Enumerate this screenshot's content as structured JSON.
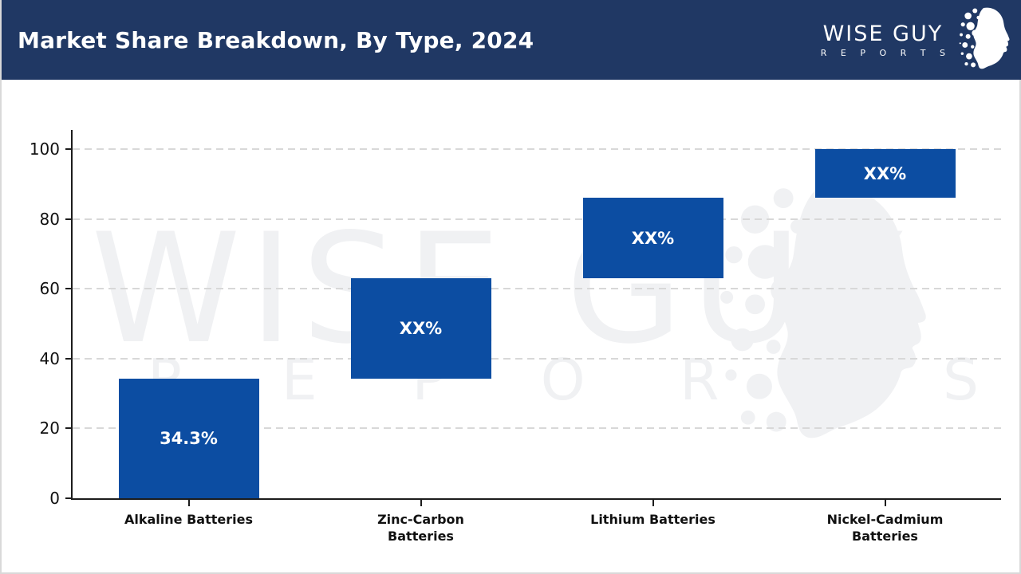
{
  "header": {
    "title": "Market Share Breakdown, By Type, 2024",
    "bg_color": "#203864",
    "logo": {
      "name": "WISE GUY",
      "sub": "R E P O R T S"
    }
  },
  "watermark": {
    "line1": "WISE GUY",
    "line2": "R E P O R T S"
  },
  "chart_data": {
    "type": "bar",
    "subtype": "waterfall",
    "title": "Market Share Breakdown, By Type, 2024",
    "categories": [
      "Alkaline Batteries",
      "Zinc-Carbon\nBatteries",
      "Lithium Batteries",
      "Nickel-Cadmium\nBatteries"
    ],
    "series": [
      {
        "name": "Market Share",
        "segments": [
          {
            "category": "Alkaline Batteries",
            "start": 0,
            "end": 34.3,
            "label": "34.3%"
          },
          {
            "category": "Zinc-Carbon Batteries",
            "start": 34.3,
            "end": 63,
            "label": "XX%"
          },
          {
            "category": "Lithium Batteries",
            "start": 63,
            "end": 86,
            "label": "XX%"
          },
          {
            "category": "Nickel-Cadmium Batteries",
            "start": 86,
            "end": 100,
            "label": "XX%"
          }
        ]
      }
    ],
    "xlabel": "",
    "ylabel": "",
    "ylim": [
      0,
      100
    ],
    "yticks": [
      0,
      20,
      40,
      60,
      80,
      100
    ],
    "grid": "horizontal-dashed",
    "legend": "none",
    "bar_color": "#0c4da2",
    "bar_label_color": "#ffffff",
    "axis_color": "#1c1c1c",
    "grid_color": "#d8d8d8"
  }
}
